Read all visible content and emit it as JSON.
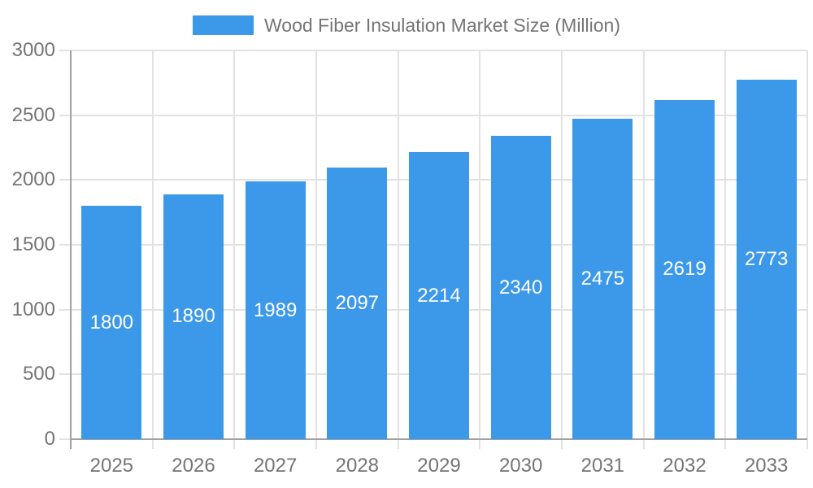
{
  "chart_data": {
    "type": "bar",
    "title": "Wood Fiber Insulation Market Size (Million)",
    "legend": [
      "Wood Fiber Insulation Market Size (Million)"
    ],
    "legend_position": "top",
    "categories": [
      "2025",
      "2026",
      "2027",
      "2028",
      "2029",
      "2030",
      "2031",
      "2032",
      "2033"
    ],
    "values": [
      1800,
      1890,
      1989,
      2097,
      2214,
      2340,
      2475,
      2619,
      2773
    ],
    "xlabel": "",
    "ylabel": "",
    "ylim": [
      0,
      3000
    ],
    "yticks": [
      0,
      500,
      1000,
      1500,
      2000,
      2500,
      3000
    ],
    "grid": true,
    "bar_labels_shown": true,
    "colors": {
      "bar": "#3C99EA",
      "grid": "#E2E2E2",
      "axis": "#A0A0A0",
      "text": "#757575",
      "bar_label": "#FFFFFF",
      "background": "#FFFFFF"
    }
  }
}
